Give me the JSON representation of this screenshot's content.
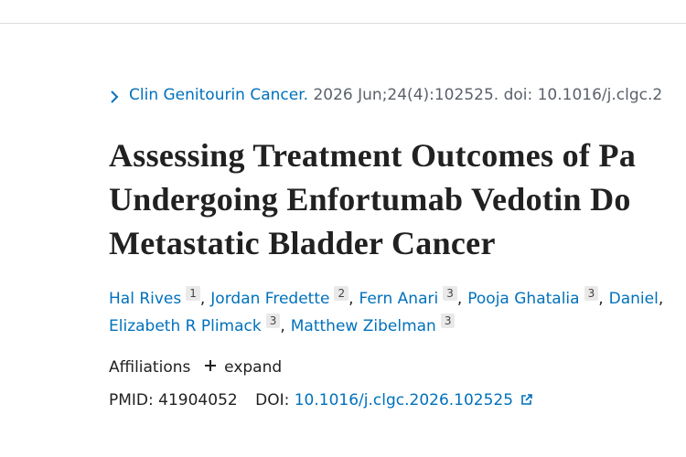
{
  "citation": {
    "journal": "Clin Genitourin Cancer.",
    "details": "2026 Jun;24(4):102525. doi: 10.1016/j.clgc.2"
  },
  "title_lines": [
    "Assessing Treatment Outcomes of Pa",
    "Undergoing Enfortumab Vedotin Do",
    "Metastatic Bladder Cancer"
  ],
  "authors": {
    "separator": ",",
    "lines": [
      [
        {
          "name": "Hal Rives",
          "sup": "1"
        },
        {
          "name": "Jordan Fredette",
          "sup": "2"
        },
        {
          "name": "Fern Anari",
          "sup": "3"
        },
        {
          "name": "Pooja Ghatalia",
          "sup": "3"
        },
        {
          "name": "Daniel"
        }
      ],
      [
        {
          "name": "Elizabeth R Plimack",
          "sup": "3"
        },
        {
          "name": "Matthew Zibelman",
          "sup": "3"
        }
      ]
    ]
  },
  "affiliations": {
    "label": "Affiliations",
    "action": "expand"
  },
  "ids": {
    "pmid_label": "PMID:",
    "pmid": "41904052",
    "doi_label": "DOI:",
    "doi": "10.1016/j.clgc.2026.102525"
  }
}
